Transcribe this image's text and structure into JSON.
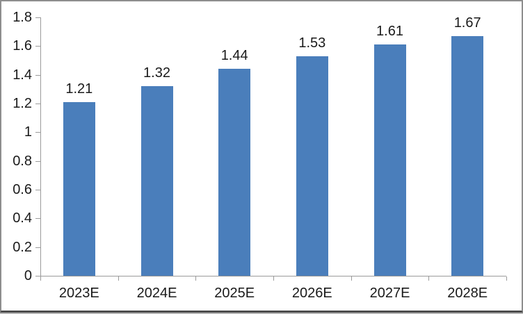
{
  "chart_data": {
    "type": "bar",
    "title": "",
    "xlabel": "",
    "ylabel": "",
    "categories": [
      "2023E",
      "2024E",
      "2025E",
      "2026E",
      "2027E",
      "2028E"
    ],
    "values": [
      1.21,
      1.32,
      1.44,
      1.53,
      1.61,
      1.67
    ],
    "data_labels": [
      "1.21",
      "1.32",
      "1.44",
      "1.53",
      "1.61",
      "1.67"
    ],
    "ylim": [
      0,
      1.8
    ],
    "ytick_step": 0.2,
    "ytick_labels": [
      "0",
      "0.2",
      "0.4",
      "0.6",
      "0.8",
      "1",
      "1.2",
      "1.4",
      "1.6",
      "1.8"
    ],
    "grid": false,
    "legend": "none",
    "colors": {
      "bar_fill": "#4a7ebb",
      "axis_line": "#9a9a9a",
      "text": "#1a1a1a",
      "frame_border": "#8e8e8e",
      "frame_bottom": "#4c4c4c",
      "background": "#ffffff"
    }
  }
}
